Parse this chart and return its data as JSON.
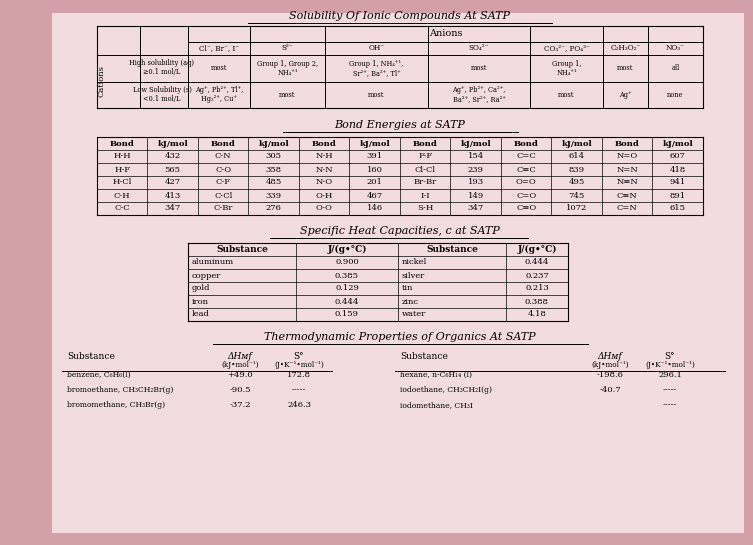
{
  "title1": "Solubility Of Ionic Compounds At SATP",
  "title2": "Bond Energies at SATP",
  "title3": "Specific Heat Capacities, c at SATP",
  "title4": "Thermodynamic Properties of Organics At SATP",
  "bg_color": "#d4a0a8",
  "paper_color": "#f2dce0",
  "solubility_anions": [
    "Cl⁻, Br⁻, I⁻",
    "S²⁻",
    "OH⁻",
    "SO₄²⁻",
    "CO₃²⁻, PO₄³⁻",
    "C₂H₃O₂⁻",
    "NO₃⁻"
  ],
  "solubility_high_row": [
    "most",
    "Group 1, Group 2,\nNH₄⁺¹",
    "Group 1, NH₄⁺¹,\nSr²⁺, Ba²⁺, Tl⁺",
    "most",
    "Group 1,\nNH₄⁺¹",
    "most",
    "all"
  ],
  "solubility_low_row": [
    "Ag⁺, Pb²⁺, Tl⁺,\nHg₂²⁺, Cu⁺",
    "most",
    "most",
    "Ag⁺, Pb²⁺, Ca²⁺,\nBa²⁺, Sr²⁺, Ra²⁺",
    "most",
    "Ag⁺",
    "none"
  ],
  "bond_data": [
    [
      "H-H",
      432,
      "C-N",
      305,
      "N-H",
      391,
      "F-F",
      154,
      "C=C",
      614,
      "N=O",
      607
    ],
    [
      "H-F",
      565,
      "C-O",
      358,
      "N-N",
      160,
      "Cl-Cl",
      239,
      "C≡C",
      839,
      "N=N",
      418
    ],
    [
      "H-Cl",
      427,
      "C-F",
      485,
      "N-O",
      201,
      "Br-Br",
      193,
      "O=O",
      495,
      "N≡N",
      941
    ],
    [
      "C-H",
      413,
      "C-Cl",
      339,
      "O-H",
      467,
      "I-I",
      149,
      "C=O",
      745,
      "C≡N",
      891
    ],
    [
      "C-C",
      347,
      "C-Br",
      276,
      "O-O",
      146,
      "S-H",
      347,
      "C≡O",
      1072,
      "C=N",
      615
    ]
  ],
  "heat_substances_left": [
    "aluminum",
    "copper",
    "gold",
    "iron",
    "lead"
  ],
  "heat_values_left": [
    "0.900",
    "0.385",
    "0.129",
    "0.444",
    "0.159"
  ],
  "heat_substances_right": [
    "nickel",
    "silver",
    "tin",
    "zinc",
    "water"
  ],
  "heat_values_right": [
    "0.444",
    "0.237",
    "0.213",
    "0.388",
    "4.18"
  ],
  "thermo_left": [
    [
      "benzene, C₆H₆(l)",
      "+49.0",
      "172.8"
    ],
    [
      "bromoethane, CH₃CH₂Br(g)",
      "-90.5",
      "-----"
    ],
    [
      "bromomethane, CH₃Br(g)",
      "-37.2",
      "246.3"
    ]
  ],
  "thermo_right": [
    [
      "hexane, n-C₆H₁₄ (l)",
      "-198.6",
      "296.1"
    ],
    [
      "iodoethane, CH₃CH₂I(g)",
      "-40.7",
      "-----"
    ],
    [
      "iodomethane, CH₃I",
      "",
      "-----"
    ]
  ]
}
